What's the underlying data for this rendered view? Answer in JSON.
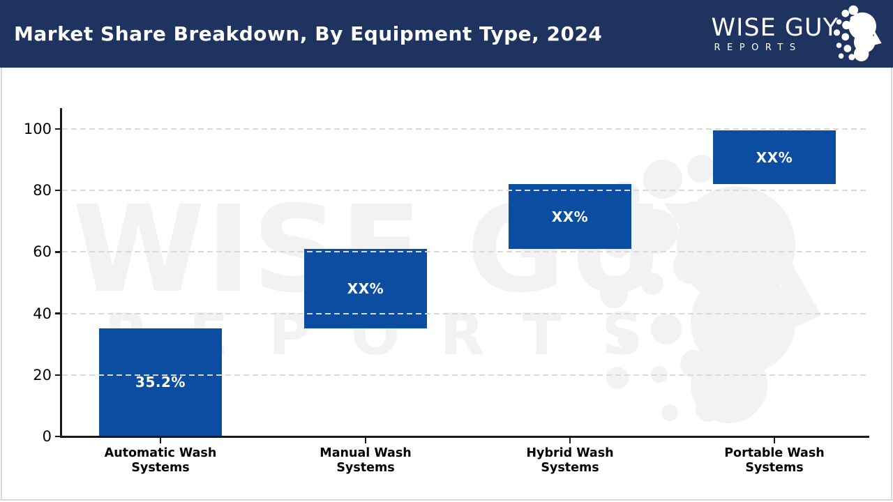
{
  "header": {
    "title": "Market Share Breakdown, By Equipment Type, 2024",
    "logo": {
      "name": "WISE GUY",
      "sub": "REPORTS"
    },
    "bg_color": "#1f3361",
    "text_color": "#ffffff"
  },
  "watermark": {
    "text": "WISE GUY",
    "sub": "REPORTS"
  },
  "chart_data": {
    "type": "bar",
    "variant": "waterfall",
    "title": "Market Share Breakdown, By Equipment Type, 2024",
    "xlabel": "",
    "ylabel": "",
    "ylim": [
      0,
      105
    ],
    "y_ticks": [
      0,
      20,
      40,
      60,
      80,
      100
    ],
    "grid": {
      "horizontal": true,
      "style": "dashed",
      "color": "#d9d9d9"
    },
    "bar_color": "#0b4da1",
    "bar_label_color": "#ffffff",
    "categories": [
      "Automatic Wash Systems",
      "Manual Wash Systems",
      "Hybrid Wash Systems",
      "Portable Wash Systems"
    ],
    "segments": [
      {
        "category": "Automatic Wash Systems",
        "start": 0,
        "end": 35.2,
        "label": "35.2%"
      },
      {
        "category": "Manual Wash Systems",
        "start": 35.2,
        "end": 61,
        "label": "XX%"
      },
      {
        "category": "Hybrid Wash Systems",
        "start": 61,
        "end": 82,
        "label": "XX%"
      },
      {
        "category": "Portable Wash Systems",
        "start": 82,
        "end": 99.5,
        "label": "XX%"
      }
    ]
  }
}
